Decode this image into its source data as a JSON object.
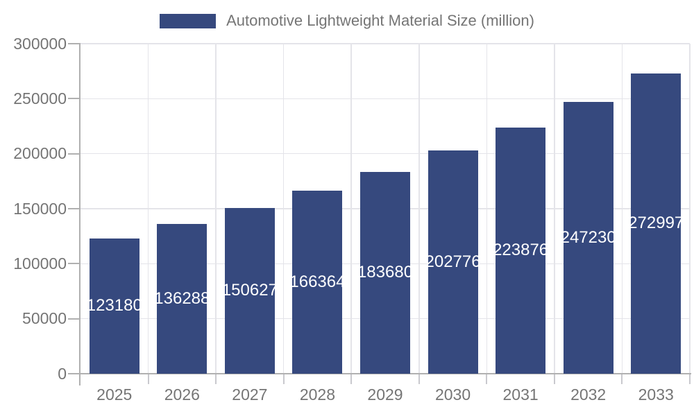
{
  "legend": {
    "label": "Automotive Lightweight Material Size (million)",
    "swatch_color": "#36497e"
  },
  "chart_data": {
    "type": "bar",
    "title": "Automotive Lightweight Material Size (million)",
    "series_name": "Automotive Lightweight Material Size (million)",
    "categories": [
      "2025",
      "2026",
      "2027",
      "2028",
      "2029",
      "2030",
      "2031",
      "2032",
      "2033"
    ],
    "values": [
      123180,
      136288,
      150627,
      166364,
      183680,
      202776,
      223876,
      247230,
      272997
    ],
    "xlabel": "",
    "ylabel": "",
    "ylim": [
      0,
      300000
    ],
    "ytick_step": 50000,
    "ytick_labels": [
      "0",
      "50000",
      "100000",
      "150000",
      "200000",
      "250000",
      "300000"
    ],
    "grid": true,
    "legend_position": "top-center",
    "value_labels": "inside-center-white",
    "colors": {
      "bar": "#36497e",
      "gridline": "#e4e4e9",
      "axis_line": "#b0b0b0",
      "tick_label": "#757575",
      "value_label": "#ffffff",
      "background": "#ffffff"
    }
  }
}
